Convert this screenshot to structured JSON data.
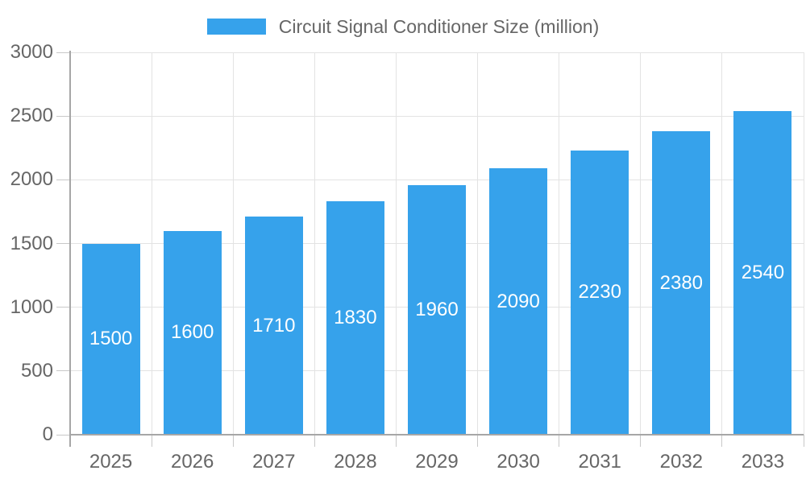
{
  "legend": {
    "label": "Circuit Signal Conditioner Size (million)"
  },
  "chart_data": {
    "type": "bar",
    "title": "Circuit Signal Conditioner Size (million)",
    "categories": [
      "2025",
      "2026",
      "2027",
      "2028",
      "2029",
      "2030",
      "2031",
      "2032",
      "2033"
    ],
    "values": [
      1500,
      1600,
      1710,
      1830,
      1960,
      2090,
      2230,
      2380,
      2540
    ],
    "series_name": "Circuit Signal Conditioner Size (million)",
    "xlabel": "",
    "ylabel": "",
    "ylim": [
      0,
      3000
    ],
    "yticks": [
      0,
      500,
      1000,
      1500,
      2000,
      2500,
      3000
    ],
    "grid": true,
    "legend_position": "top",
    "value_labels": "inside-center",
    "bar_color": "#36A2EB",
    "value_label_color": "#FFFFFF"
  },
  "colors": {
    "bar": "#36A2EB",
    "gridline": "#E3E3E3",
    "axis_line": "#A6A6A6",
    "tick": "#C8C8C8",
    "axis_text": "#666666",
    "legend_text": "#666666",
    "bar_label_text": "#FFFFFF",
    "background": "#FFFFFF"
  }
}
